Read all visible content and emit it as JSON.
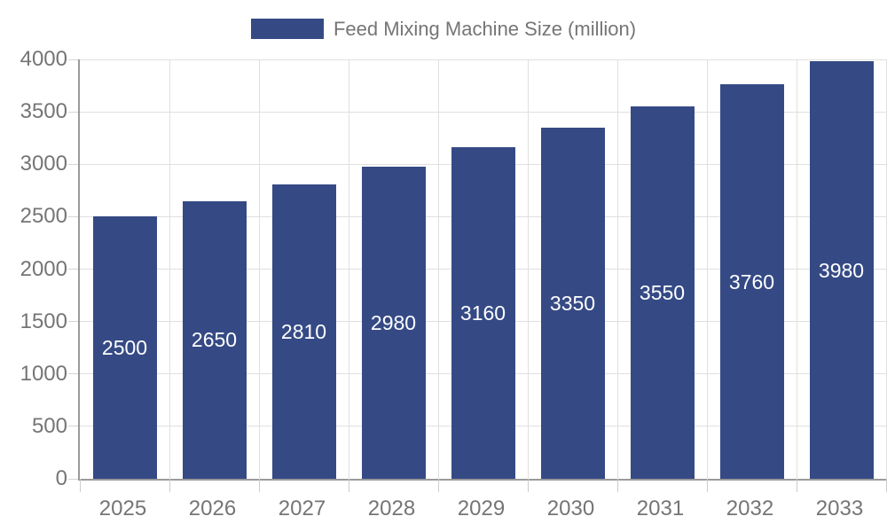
{
  "chart_data": {
    "type": "bar",
    "legend_label": "Feed Mixing Machine Size (million)",
    "legend_position": "top-center",
    "categories": [
      "2025",
      "2026",
      "2027",
      "2028",
      "2029",
      "2030",
      "2031",
      "2032",
      "2033"
    ],
    "values": [
      2500,
      2650,
      2810,
      2980,
      3160,
      3350,
      3550,
      3760,
      3980
    ],
    "xlabel": "",
    "ylabel": "",
    "ylim": [
      0,
      4000
    ],
    "ytick_step": 500,
    "yticks": [
      0,
      500,
      1000,
      1500,
      2000,
      2500,
      3000,
      3500,
      4000
    ],
    "grid": true,
    "value_labels_position": "inside-middle",
    "colors": {
      "bar": "#354A85",
      "bar_value_text": "#ffffff",
      "axis_text": "#757575",
      "legend_text": "#757575",
      "grid_line": "#e0e0e0",
      "axis_line": "#9a9a9a"
    }
  }
}
